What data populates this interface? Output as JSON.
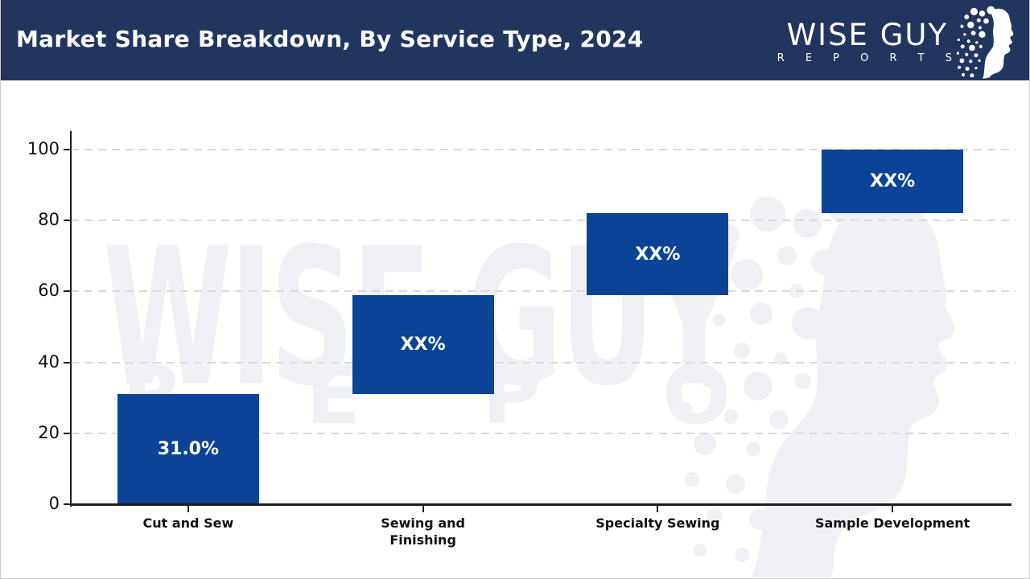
{
  "header": {
    "logo": {
      "line1": "WISE GUY",
      "line2": "R E P O R T S"
    }
  },
  "watermark": {
    "line1": "WISE GUY",
    "line2": "R E P O R T S"
  },
  "colors": {
    "header_bg": "#21365f",
    "bar": "#0b4397",
    "bar_label": "#ffffff",
    "gridline": "#d9d9d9",
    "watermark": "#f0f1f4"
  },
  "chart_data": {
    "type": "bar",
    "subtype": "waterfall",
    "title": "Market Share Breakdown, By Service Type, 2024",
    "categories": [
      "Cut and Sew",
      "Sewing and\nFinishing",
      "Specialty Sewing",
      "Sample Development"
    ],
    "segments": [
      {
        "category": "Cut and Sew",
        "start": 0,
        "end": 31,
        "label": "31.0%"
      },
      {
        "category": "Sewing and Finishing",
        "start": 31,
        "end": 59,
        "label": "XX%"
      },
      {
        "category": "Specialty Sewing",
        "start": 59,
        "end": 82,
        "label": "XX%"
      },
      {
        "category": "Sample Development",
        "start": 82,
        "end": 100,
        "label": "XX%"
      }
    ],
    "xlabel": "",
    "ylabel": "",
    "ylim": [
      0,
      100
    ],
    "yticks": [
      0,
      20,
      40,
      60,
      80,
      100
    ],
    "grid": "horizontal-dashed",
    "legend": "none"
  }
}
